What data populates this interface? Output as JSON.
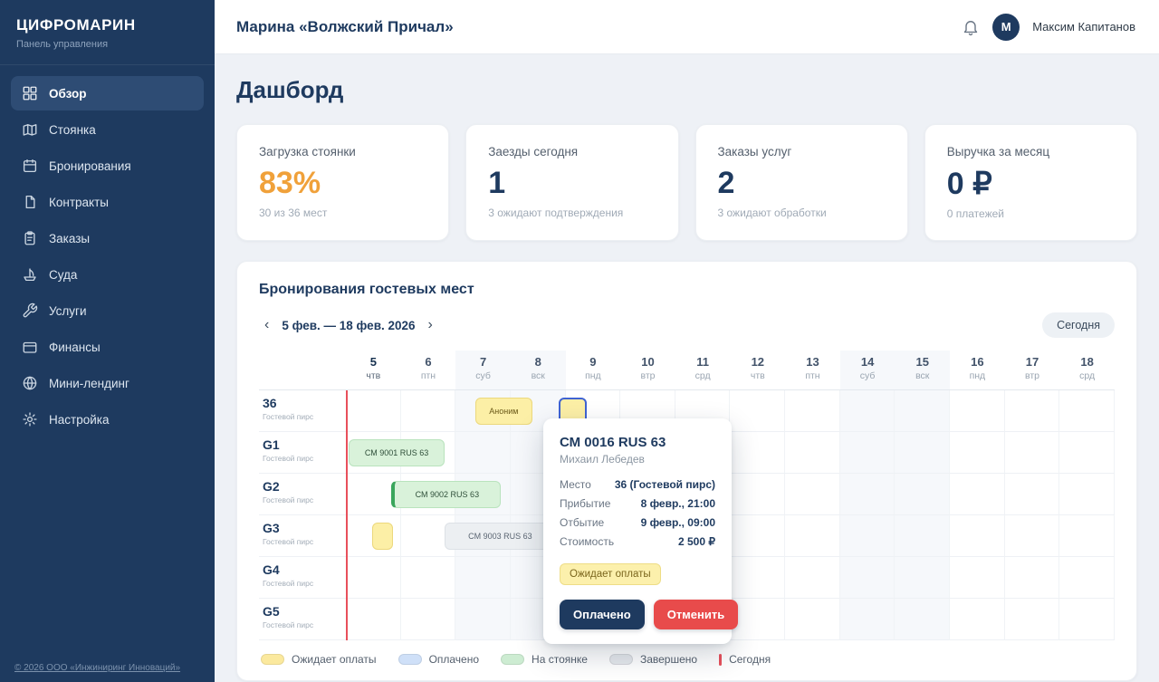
{
  "sidebar": {
    "logo": "ЦИФРОМАРИН",
    "subtitle": "Панель управления",
    "items": [
      {
        "key": "overview",
        "icon": "grid",
        "label": "Обзор",
        "active": true
      },
      {
        "key": "parking",
        "icon": "map",
        "label": "Стоянка"
      },
      {
        "key": "bookings",
        "icon": "calendar",
        "label": "Бронирования"
      },
      {
        "key": "contracts",
        "icon": "document",
        "label": "Контракты"
      },
      {
        "key": "orders",
        "icon": "clipboard",
        "label": "Заказы"
      },
      {
        "key": "vessels",
        "icon": "boat",
        "label": "Суда"
      },
      {
        "key": "services",
        "icon": "wrench",
        "label": "Услуги"
      },
      {
        "key": "finance",
        "icon": "wallet",
        "label": "Финансы"
      },
      {
        "key": "mini-landing",
        "icon": "globe",
        "label": "Мини-лендинг"
      },
      {
        "key": "settings",
        "icon": "gear",
        "label": "Настройка"
      }
    ],
    "footer": "© 2026 ООО «Инжиниринг Инноваций»"
  },
  "header": {
    "title": "Марина «Волжский Причал»",
    "user": {
      "initial": "М",
      "name": "Максим Капитанов"
    }
  },
  "page": {
    "title": "Дашборд"
  },
  "stats": [
    {
      "key": "occupancy",
      "label": "Загрузка стоянки",
      "value": "83%",
      "sub": "30 из 36 мест",
      "color": "#f0a13a"
    },
    {
      "key": "arrivals",
      "label": "Заезды сегодня",
      "value": "1",
      "sub": "3 ожидают подтверждения",
      "color": "#1e3a5f"
    },
    {
      "key": "service-orders",
      "label": "Заказы услуг",
      "value": "2",
      "sub": "3 ожидают обработки",
      "color": "#1e3a5f"
    },
    {
      "key": "revenue",
      "label": "Выручка за месяц",
      "value": "0 ₽",
      "sub": "0 платежей",
      "color": "#1e3a5f"
    }
  ],
  "calendar": {
    "title": "Бронирования гостевых мест",
    "prev_label": "‹",
    "next_label": "›",
    "range": "5 фев. — 18 фев. 2026",
    "today_button": "Сегодня",
    "days": [
      {
        "num": "5",
        "dow": "чтв",
        "today": true
      },
      {
        "num": "6",
        "dow": "птн"
      },
      {
        "num": "7",
        "dow": "суб",
        "weekend": true
      },
      {
        "num": "8",
        "dow": "вск",
        "weekend": true
      },
      {
        "num": "9",
        "dow": "пнд"
      },
      {
        "num": "10",
        "dow": "втр"
      },
      {
        "num": "11",
        "dow": "срд"
      },
      {
        "num": "12",
        "dow": "чтв"
      },
      {
        "num": "13",
        "dow": "птн"
      },
      {
        "num": "14",
        "dow": "суб",
        "weekend": true
      },
      {
        "num": "15",
        "dow": "вск",
        "weekend": true
      },
      {
        "num": "16",
        "dow": "пнд"
      },
      {
        "num": "17",
        "dow": "втр"
      },
      {
        "num": "18",
        "dow": "срд"
      }
    ],
    "rows": [
      {
        "name": "36",
        "pier": "Гостевой пирс"
      },
      {
        "name": "G1",
        "pier": "Гостевой пирс"
      },
      {
        "name": "G2",
        "pier": "Гостевой пирс"
      },
      {
        "name": "G3",
        "pier": "Гостевой пирс"
      },
      {
        "name": "G4",
        "pier": "Гостевой пирс"
      },
      {
        "name": "G5",
        "pier": "Гостевой пирс"
      }
    ],
    "bookings": [
      {
        "row": 0,
        "start": 2.35,
        "end": 3.4,
        "label": "Аноним",
        "status": "pending"
      },
      {
        "row": 0,
        "start": 3.88,
        "end": 4.38,
        "label": "",
        "status": "pending",
        "selected": true
      },
      {
        "row": 1,
        "start": 0.05,
        "end": 1.8,
        "label": "СМ 9001 RUS 63",
        "status": "onsite"
      },
      {
        "row": 2,
        "start": 0.82,
        "end": 2.82,
        "label": "СМ 9002 RUS 63",
        "status": "onsite",
        "edge": true
      },
      {
        "row": 3,
        "start": 0.48,
        "end": 0.85,
        "label": "",
        "status": "pending"
      },
      {
        "row": 3,
        "start": 1.8,
        "end": 3.82,
        "label": "СМ 9003 RUS 63",
        "status": "done"
      }
    ],
    "today_index": 0,
    "legend": [
      {
        "label": "Ожидает оплаты",
        "color": "#fbe99e",
        "type": "swatch"
      },
      {
        "label": "Оплачено",
        "color": "#cfe0f8",
        "type": "swatch"
      },
      {
        "label": "На стоянке",
        "color": "#cdecd2",
        "type": "swatch"
      },
      {
        "label": "Завершено",
        "color": "#e6e9ed",
        "type": "swatch"
      },
      {
        "label": "Сегодня",
        "color": "#e8505b",
        "type": "line"
      }
    ]
  },
  "popover": {
    "title": "СМ 0016 RUS 63",
    "subtitle": "Михаил Лебедев",
    "fields": [
      {
        "label": "Место",
        "value": "36 (Гостевой пирс)"
      },
      {
        "label": "Прибытие",
        "value": "8 февр., 21:00"
      },
      {
        "label": "Отбытие",
        "value": "9 февр., 09:00"
      },
      {
        "label": "Стоимость",
        "value": "2 500 ₽"
      }
    ],
    "status_badge": "Ожидает оплаты",
    "buttons": {
      "pay": "Оплачено",
      "cancel": "Отменить"
    }
  }
}
